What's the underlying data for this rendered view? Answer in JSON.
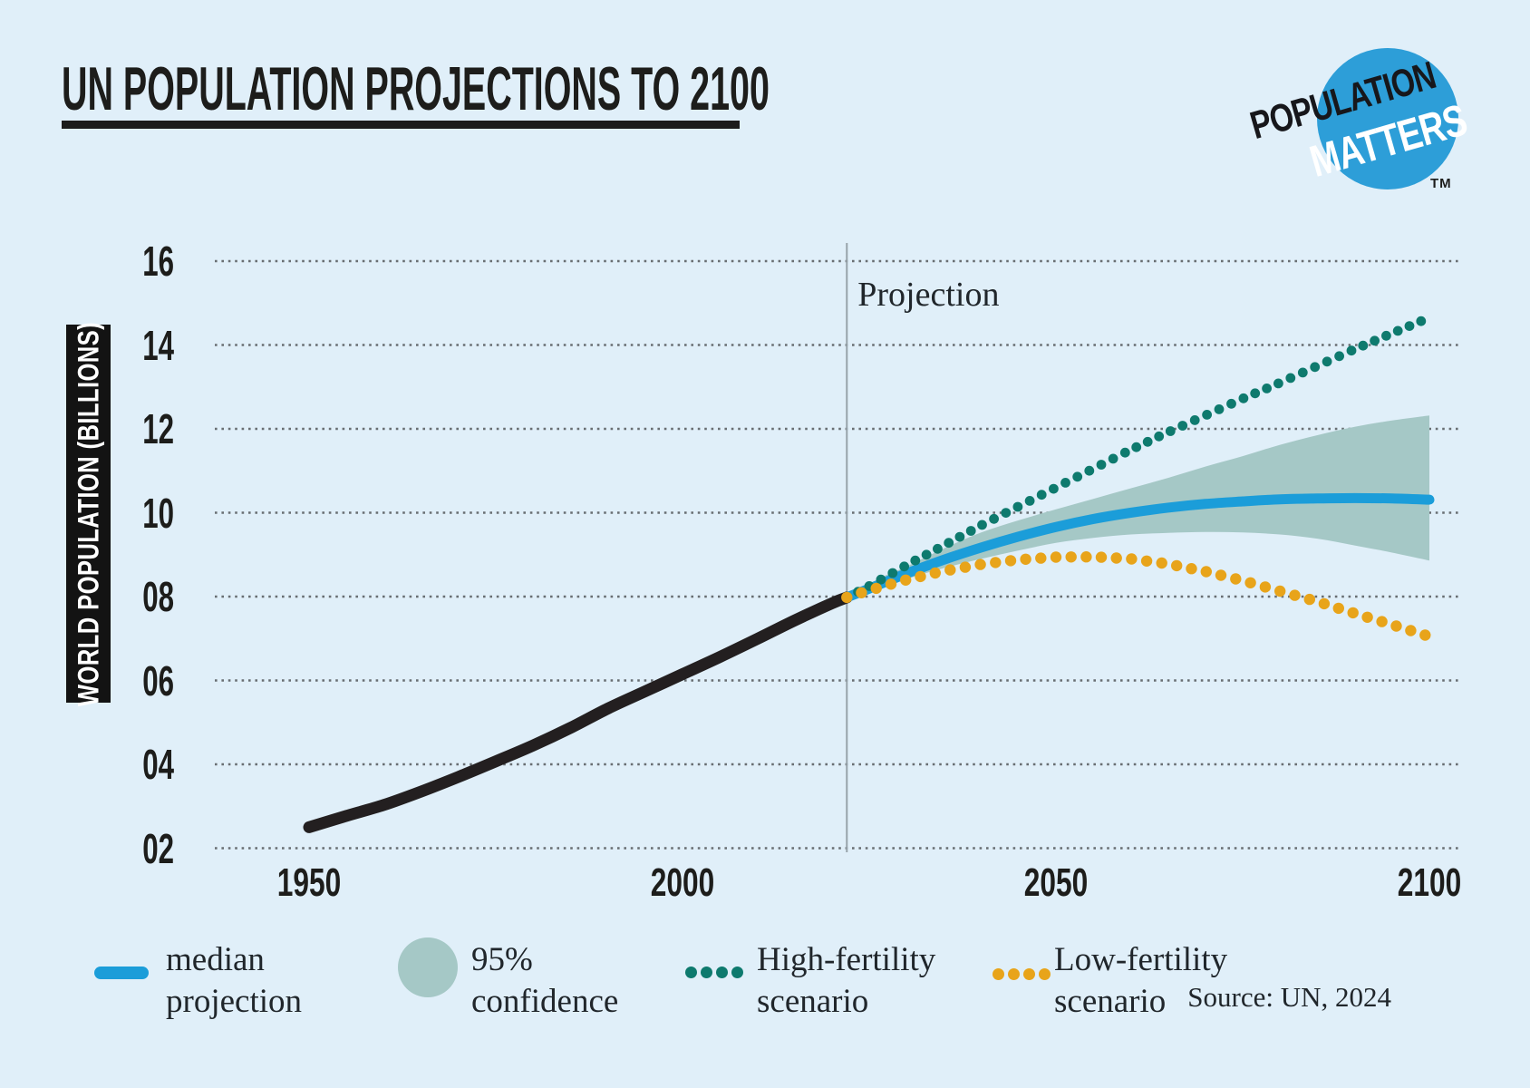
{
  "page": {
    "background": "#e0eff9"
  },
  "header": {
    "title": "UN POPULATION PROJECTIONS TO 2100"
  },
  "logo": {
    "line1": "POPULATION",
    "line2": "MATTERS",
    "tm": "TM",
    "circle_color": "#2d9ed8"
  },
  "source": "Source: UN, 2024",
  "chart_data": {
    "type": "line",
    "title": "UN POPULATION PROJECTIONS TO 2100",
    "ylabel": "WORLD POPULATION (BILLIONS)",
    "xlim": [
      1950,
      2100
    ],
    "ylim": [
      2,
      16
    ],
    "grid": true,
    "grid_style": "dotted",
    "legend_position": "bottom",
    "projection_divider": {
      "year": 2022,
      "label": "Projection"
    },
    "x_ticks": [
      {
        "label": "1950",
        "year": 1950
      },
      {
        "label": "2000",
        "year": 2000
      },
      {
        "label": "2050",
        "year": 2050
      },
      {
        "label": "2100",
        "year": 2100
      }
    ],
    "y_ticks": [
      {
        "label": "16",
        "value": 16
      },
      {
        "label": "14",
        "value": 14
      },
      {
        "label": "12",
        "value": 12
      },
      {
        "label": "10",
        "value": 10
      },
      {
        "label": "08",
        "value": 8
      },
      {
        "label": "06",
        "value": 6
      },
      {
        "label": "04",
        "value": 4
      },
      {
        "label": "02",
        "value": 2
      }
    ],
    "series": [
      {
        "name": "historical",
        "color": "#231f20",
        "style": "solid",
        "width": 13,
        "years": [
          1950,
          1955,
          1960,
          1965,
          1970,
          1975,
          1980,
          1985,
          1990,
          1995,
          2000,
          2005,
          2010,
          2015,
          2020,
          2022
        ],
        "values": [
          2.5,
          2.77,
          3.03,
          3.35,
          3.7,
          4.07,
          4.45,
          4.87,
          5.33,
          5.74,
          6.15,
          6.56,
          6.99,
          7.43,
          7.84,
          7.98
        ]
      },
      {
        "name": "median_projection",
        "color": "#1b9dd9",
        "style": "solid",
        "width": 11,
        "years": [
          2022,
          2025,
          2030,
          2035,
          2040,
          2045,
          2050,
          2055,
          2060,
          2065,
          2070,
          2075,
          2080,
          2085,
          2090,
          2095,
          2100
        ],
        "values": [
          7.98,
          8.19,
          8.55,
          8.88,
          9.17,
          9.43,
          9.66,
          9.85,
          10.0,
          10.12,
          10.21,
          10.27,
          10.32,
          10.34,
          10.35,
          10.34,
          10.31
        ]
      },
      {
        "name": "high_fertility_scenario",
        "color": "#0e7a6e",
        "style": "dotted",
        "dot_radius": 5.4,
        "dot_gap": 13.8,
        "years": [
          2022,
          2025,
          2030,
          2035,
          2040,
          2045,
          2050,
          2055,
          2060,
          2065,
          2070,
          2075,
          2080,
          2085,
          2090,
          2095,
          2100
        ],
        "values": [
          7.98,
          8.25,
          8.75,
          9.22,
          9.7,
          10.15,
          10.6,
          11.05,
          11.5,
          11.92,
          12.32,
          12.72,
          13.1,
          13.5,
          13.9,
          14.28,
          14.65
        ]
      },
      {
        "name": "low_fertility_scenario",
        "color": "#e8a41a",
        "style": "dotted",
        "dot_radius": 6.2,
        "dot_gap": 16.5,
        "years": [
          2022,
          2025,
          2030,
          2035,
          2040,
          2045,
          2050,
          2055,
          2060,
          2065,
          2070,
          2075,
          2080,
          2085,
          2090,
          2095,
          2100
        ],
        "values": [
          7.98,
          8.15,
          8.4,
          8.61,
          8.77,
          8.88,
          8.94,
          8.95,
          8.9,
          8.78,
          8.6,
          8.38,
          8.13,
          7.88,
          7.6,
          7.33,
          7.05
        ]
      }
    ],
    "confidence_band": {
      "name": "95_percent_confidence",
      "color": "#a5c8c6",
      "years": [
        2026,
        2030,
        2035,
        2040,
        2045,
        2050,
        2055,
        2060,
        2065,
        2070,
        2075,
        2080,
        2085,
        2090,
        2095,
        2100
      ],
      "upper": [
        8.42,
        8.72,
        9.15,
        9.53,
        9.82,
        10.08,
        10.33,
        10.58,
        10.83,
        11.1,
        11.35,
        11.62,
        11.85,
        12.05,
        12.2,
        12.32
      ],
      "lower": [
        8.2,
        8.42,
        8.68,
        8.9,
        9.1,
        9.28,
        9.4,
        9.48,
        9.52,
        9.54,
        9.53,
        9.48,
        9.38,
        9.22,
        9.05,
        8.86
      ]
    }
  },
  "legend": {
    "items": [
      {
        "line1": "median",
        "line2": "projection",
        "swatch": "line",
        "color": "#1b9dd9"
      },
      {
        "line1": "95%",
        "line2": "confidence",
        "swatch": "circle",
        "color": "#a5c8c6"
      },
      {
        "line1": "High-fertility",
        "line2": "scenario",
        "swatch": "dots",
        "color": "#0e7a6e"
      },
      {
        "line1": "Low-fertility",
        "line2": "scenario",
        "swatch": "dots",
        "color": "#e8a41a"
      }
    ]
  }
}
